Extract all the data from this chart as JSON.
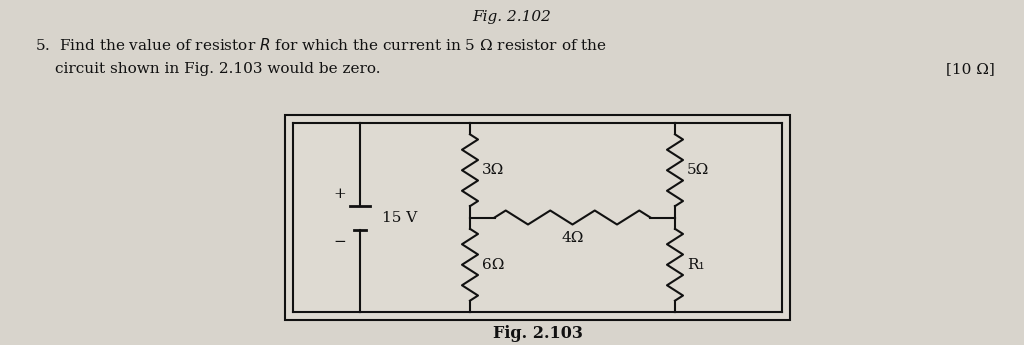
{
  "fig_title_top": "Fig. 2.102",
  "fig_title_bottom": "Fig. 2.103",
  "problem_line1": "5.  Find the value of resistor $R$ for which the current in 5 Ω resistor of the",
  "problem_line2": "      circuit shown in Fig. 2.103 would be zero.",
  "answer": "[10 Ω]",
  "voltage": "15 V",
  "r1_label": "3Ω",
  "r2_label": "5Ω",
  "r3_label": "6Ω",
  "r4_label": "4Ω",
  "r5_label": "R₁",
  "bg_color": "#d8d4cc",
  "circuit_bg": "#e0ddd6",
  "text_color": "#111111",
  "line_color": "#111111"
}
